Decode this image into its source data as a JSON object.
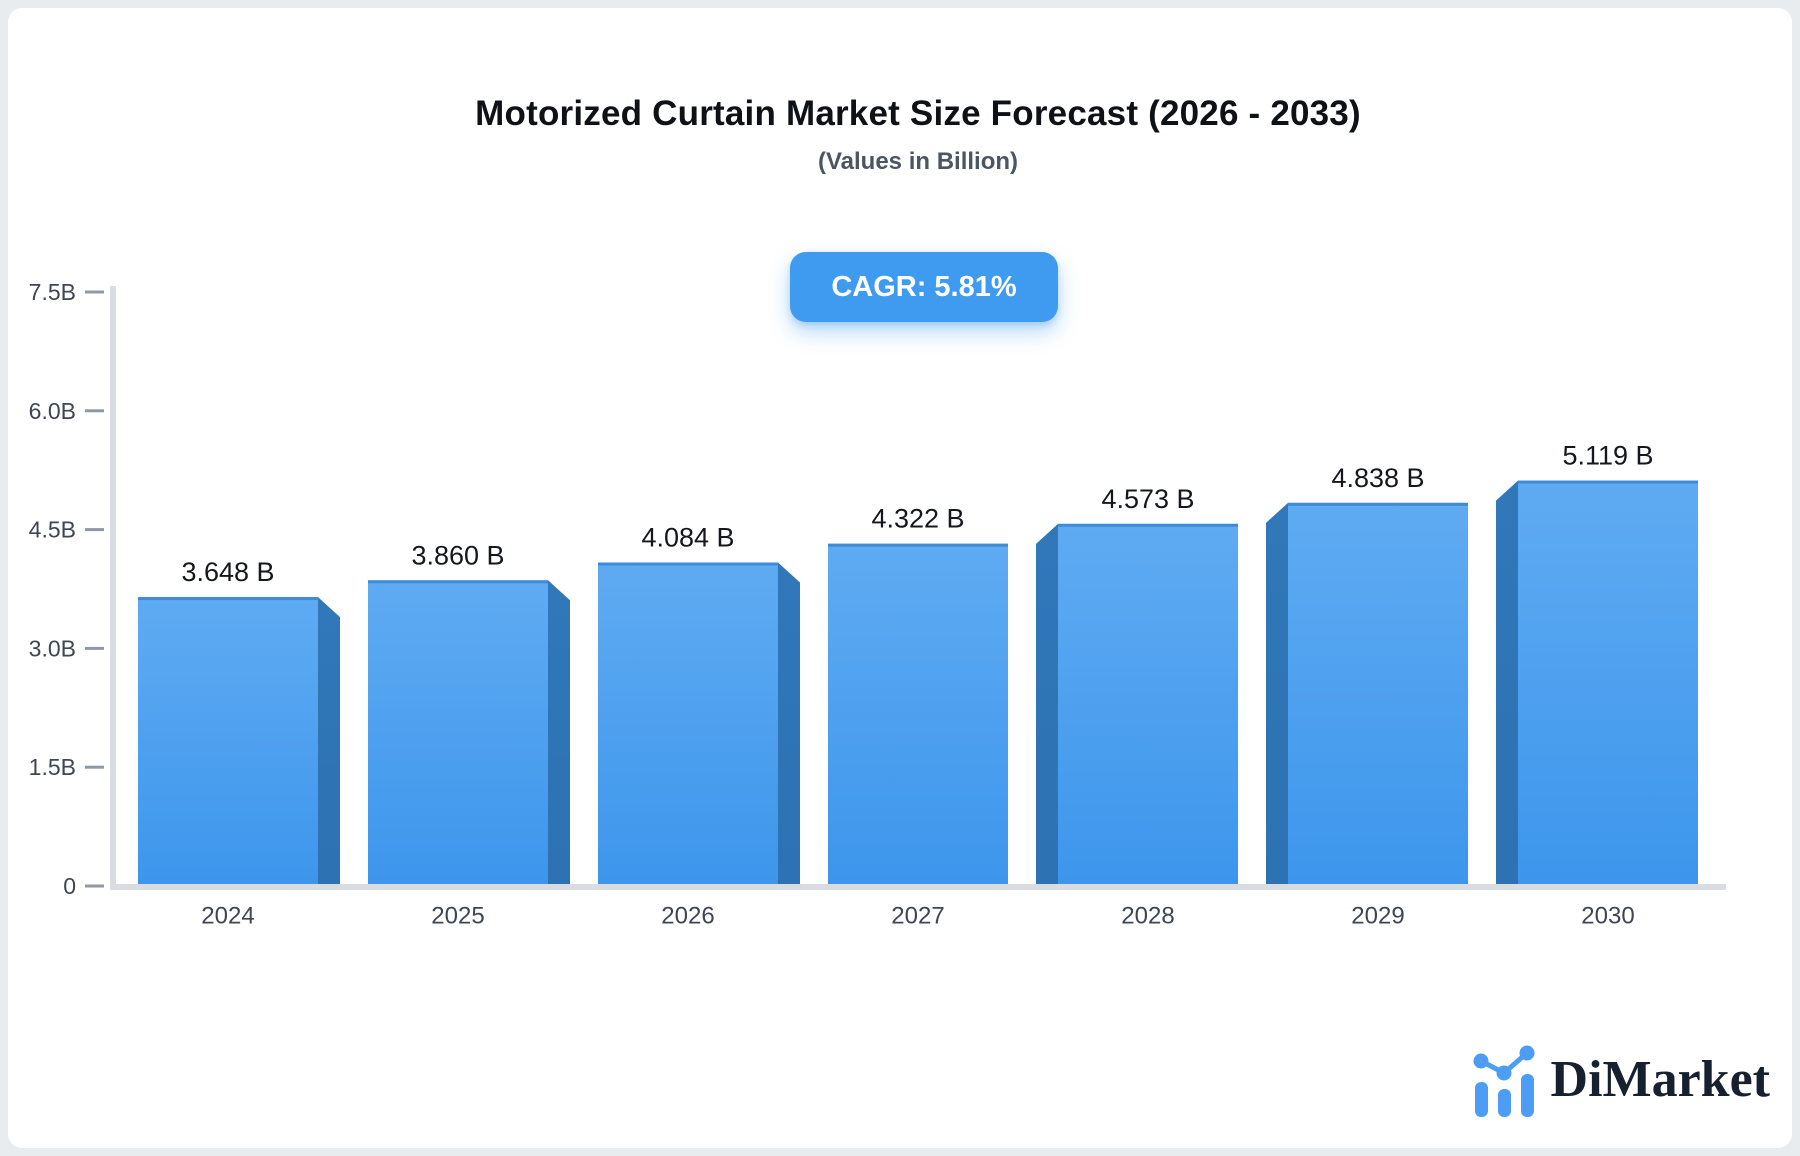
{
  "header": {
    "title": "Motorized Curtain Market Size Forecast (2026 - 2033)",
    "subtitle": "(Values in Billion)"
  },
  "badge": {
    "label": "CAGR: 5.81%",
    "color": "#3e9bf0"
  },
  "chart_data": {
    "type": "bar",
    "title": "Motorized Curtain Market Size Forecast (2026 - 2033)",
    "subtitle": "(Values in Billion)",
    "cagr": "5.81%",
    "categories": [
      "2024",
      "2025",
      "2026",
      "2027",
      "2028",
      "2029",
      "2030"
    ],
    "values": [
      3.648,
      3.86,
      4.084,
      4.322,
      4.573,
      4.838,
      5.119
    ],
    "value_labels": [
      "3.648 B",
      "3.860 B",
      "4.084 B",
      "4.322 B",
      "4.573 B",
      "4.838 B",
      "5.119 B"
    ],
    "unit": "B",
    "ylim": [
      0,
      7.5
    ],
    "yticks": {
      "values": [
        7.5,
        6.0,
        4.5,
        3.0,
        1.5,
        0
      ],
      "labels": [
        "7.5B",
        "6.0B",
        "4.5B",
        "3.0B",
        "1.5B",
        "0"
      ]
    },
    "grid": false,
    "legend": false,
    "colors": {
      "bar_face_top": "#5fabf2",
      "bar_face_bottom": "#3d96ec",
      "bar_top_edge": "#3e8bd8",
      "bar_side": "#2e76b8",
      "axis_line": "#d9dce1",
      "tick_dash": "#8f98a3",
      "tick_text": "#3e4654",
      "value_text": "#14171b"
    }
  },
  "footer": {
    "brand": "DiMarket"
  }
}
